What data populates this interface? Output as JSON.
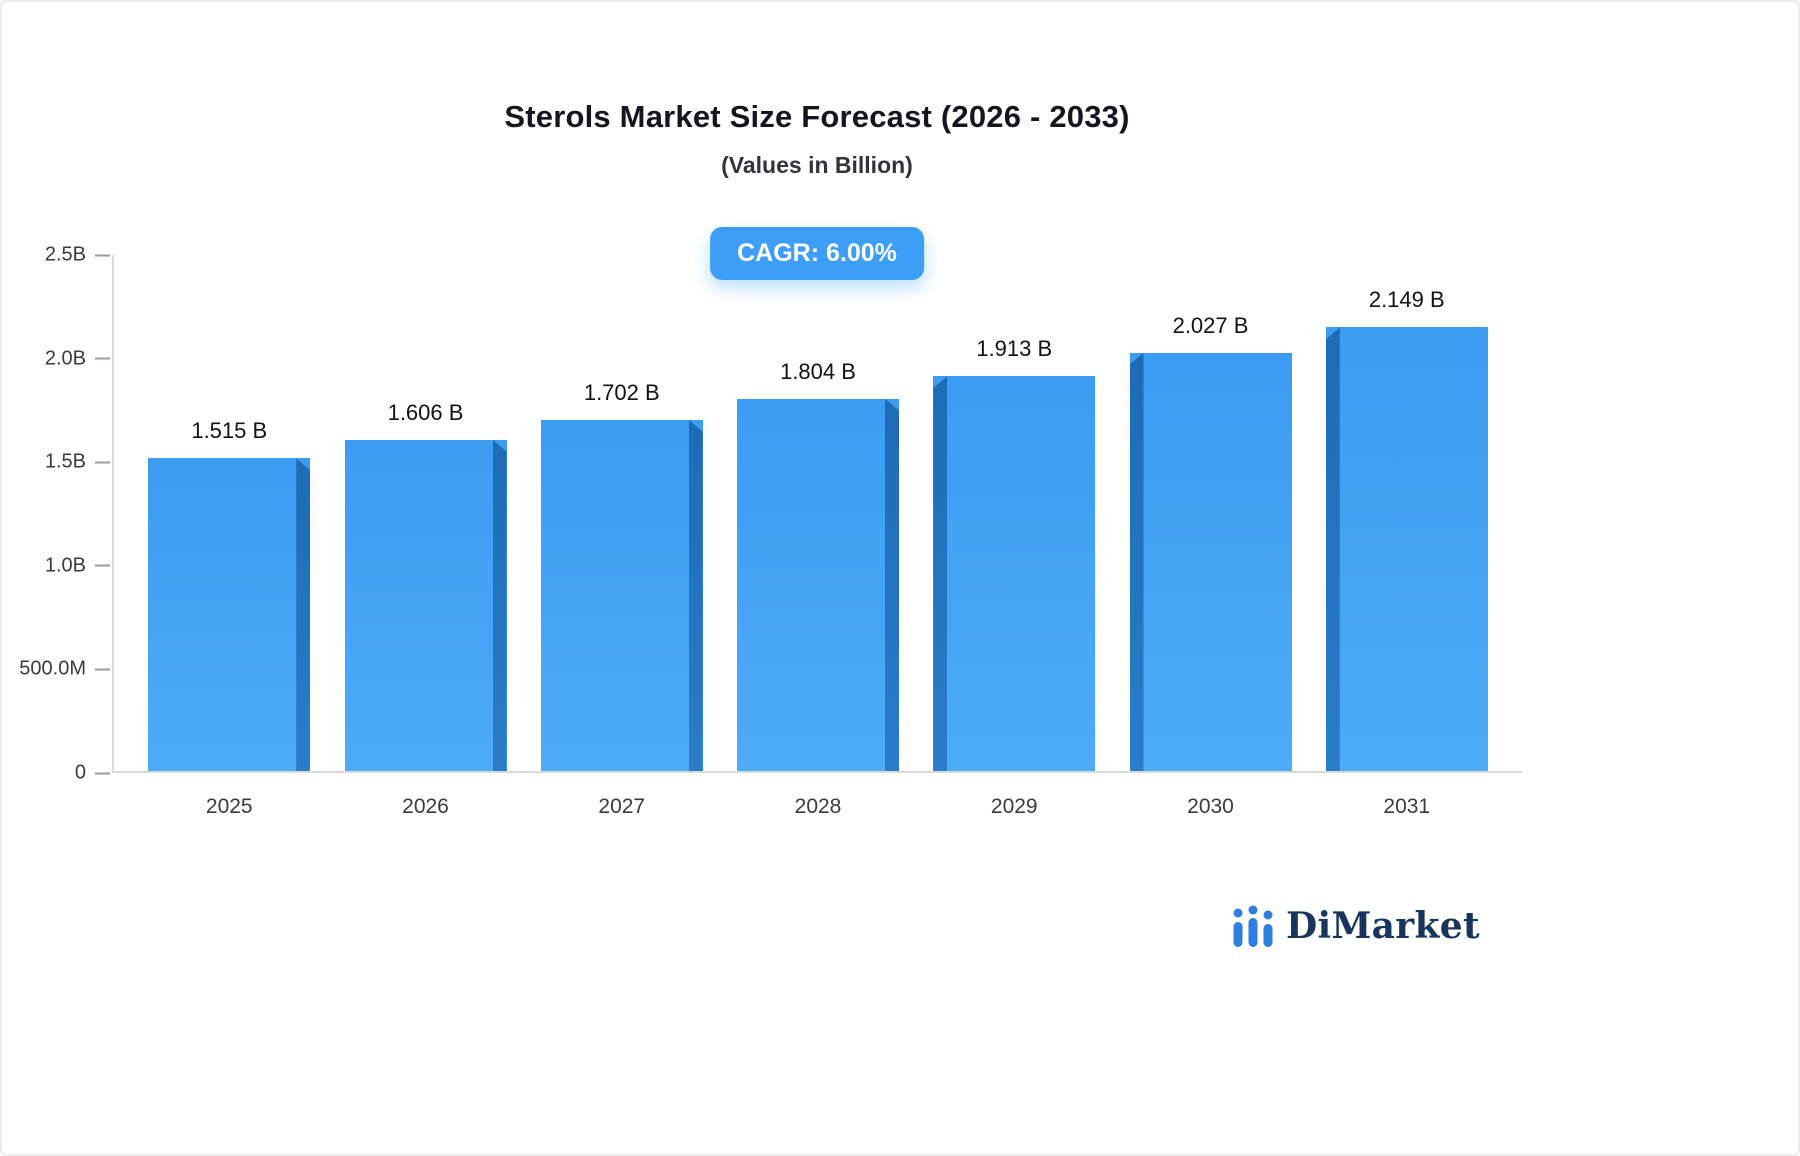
{
  "chart": {
    "title": "Sterols Market Size Forecast (2026 - 2033)",
    "subtitle": "(Values in Billion)",
    "cagr_label": "CAGR: 6.00%",
    "brand": "DiMarket"
  },
  "chart_data": {
    "type": "bar",
    "title": "Sterols Market Size Forecast (2026 - 2033)",
    "subtitle": "(Values in Billion)",
    "annotation": "CAGR: 6.00%",
    "categories": [
      "2025",
      "2026",
      "2027",
      "2028",
      "2029",
      "2030",
      "2031"
    ],
    "values": [
      1.515,
      1.606,
      1.702,
      1.804,
      1.913,
      2.027,
      2.149
    ],
    "value_labels": [
      "1.515 B",
      "1.606 B",
      "1.702 B",
      "1.804 B",
      "1.913 B",
      "2.027 B",
      "2.149 B"
    ],
    "unit": "Billion",
    "xlabel": "",
    "ylabel": "",
    "ylim": [
      0,
      2.5
    ],
    "ytick_values": [
      2.5,
      2.0,
      1.5,
      1.0,
      0.5,
      0
    ],
    "ytick_labels": [
      "2.5B",
      "2.0B",
      "1.5B",
      "1.0B",
      "500.0M",
      "0"
    ],
    "grid": false,
    "legend": false,
    "bar_color": "#3d9ef7",
    "bar_side_color": "#1d6bb5",
    "accent_color": "#3d9ef7",
    "brand_color": "#18355e"
  }
}
